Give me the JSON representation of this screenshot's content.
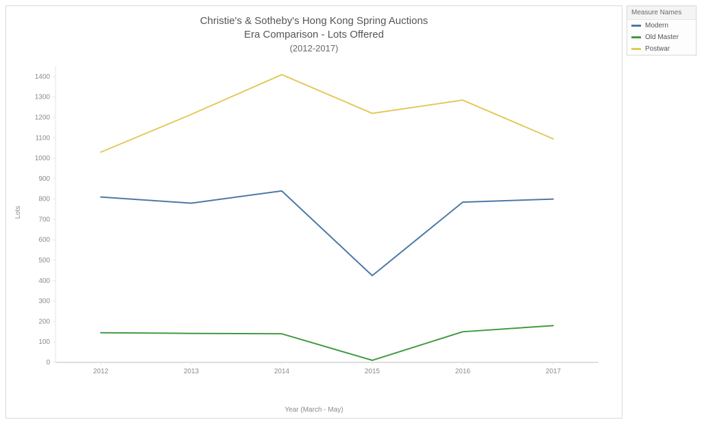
{
  "title_line1": "Christie's & Sotheby's Hong Kong Spring Auctions",
  "title_line2": "Era Comparison - Lots Offered",
  "title_line3": "(2012-2017)",
  "y_axis_label": "Lots",
  "x_axis_label": "Year (March - May)",
  "legend_title": "Measure Names",
  "chart": {
    "type": "line",
    "background_color": "#ffffff",
    "frame_border_color": "#d8d8d8",
    "tick_color": "#e6e6e6",
    "baseline_color": "#bdbdbd",
    "axis_text_color": "#8a8a8a",
    "line_width": 2,
    "x_categories": [
      "2012",
      "2013",
      "2014",
      "2015",
      "2016",
      "2017"
    ],
    "y_min": 0,
    "y_max": 1450,
    "y_tick_step": 100,
    "y_tick_labels": [
      "0",
      "100",
      "200",
      "300",
      "400",
      "500",
      "600",
      "700",
      "800",
      "900",
      "1000",
      "1100",
      "1200",
      "1300",
      "1400"
    ],
    "series": [
      {
        "name": "Modern",
        "color": "#4a78a6",
        "values": [
          810,
          780,
          840,
          425,
          785,
          800
        ]
      },
      {
        "name": "Old Master",
        "color": "#3f9a3f",
        "values": [
          145,
          142,
          140,
          10,
          150,
          180
        ]
      },
      {
        "name": "Postwar",
        "color": "#e3c95a",
        "values": [
          1030,
          1215,
          1410,
          1220,
          1285,
          1095
        ]
      }
    ]
  }
}
